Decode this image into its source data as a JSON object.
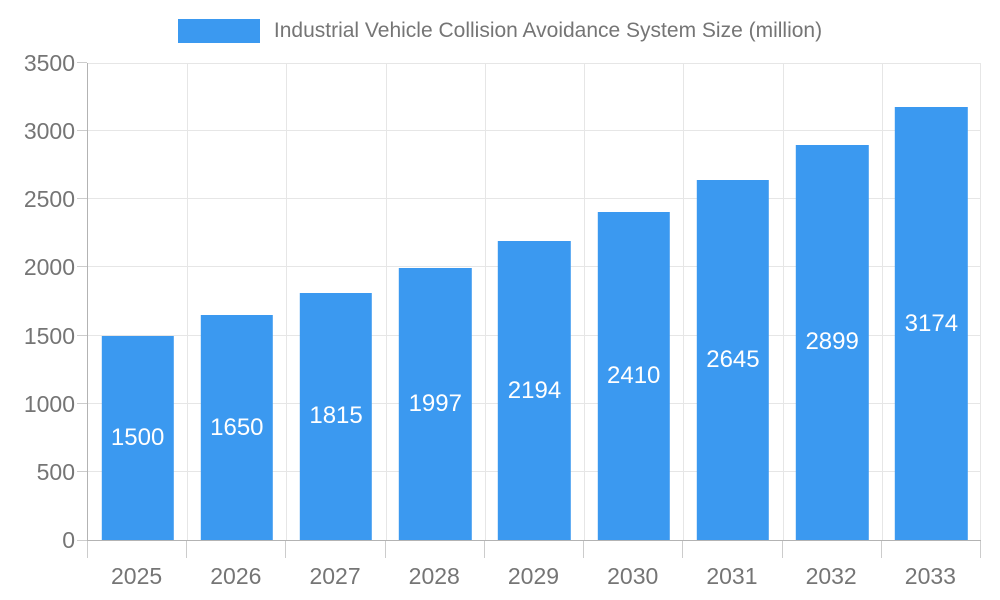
{
  "legend": {
    "label": "Industrial Vehicle Collision Avoidance System Size (million)"
  },
  "chart_data": {
    "type": "bar",
    "title": "",
    "series_name": "Industrial Vehicle Collision Avoidance System Size (million)",
    "categories": [
      "2025",
      "2026",
      "2027",
      "2028",
      "2029",
      "2030",
      "2031",
      "2032",
      "2033"
    ],
    "values": [
      1500,
      1650,
      1815,
      1997,
      2194,
      2410,
      2645,
      2899,
      3174
    ],
    "ylim": [
      0,
      3500
    ],
    "yticks": [
      0,
      500,
      1000,
      1500,
      2000,
      2500,
      3000,
      3500
    ],
    "grid": true,
    "legend_position": "top",
    "bar_color": "#3B99F0",
    "value_label_color": "#ffffff",
    "axis_text_color": "#757575",
    "gridline_color": "#e6e6e6",
    "tick_color": "#cccccc",
    "axis_line_color": "#b3b3b3"
  }
}
